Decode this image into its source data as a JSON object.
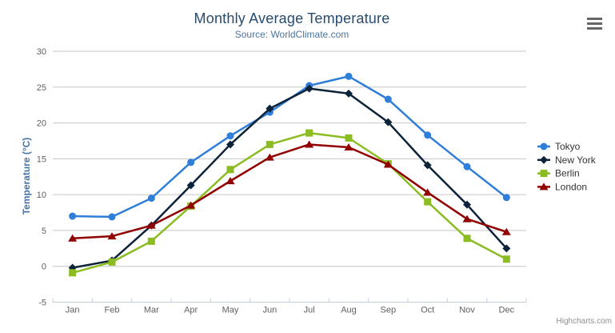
{
  "header": {
    "title": "Monthly Average Temperature",
    "subtitle": "Source: WorldClimate.com"
  },
  "y_axis_title": "Temperature (°C)",
  "credit_label": "Highcharts.com",
  "export_menu": {
    "icon": "hamburger-icon"
  },
  "colors": {
    "title_text": "#274b6d",
    "subtitle_text": "#4d759e",
    "axis_title_text": "#4572a7",
    "tick_label_text": "#606060",
    "legend_text": "#333333",
    "grid_line": "#c6c6c6",
    "x_axis_line": "#c0d0e0",
    "credit_text": "#909090"
  },
  "chart_data": {
    "type": "line",
    "title": "Monthly Average Temperature",
    "subtitle": "Source: WorldClimate.com",
    "xlabel": "",
    "ylabel": "Temperature (°C)",
    "ylim": [
      -5,
      30
    ],
    "ytick_step": 5,
    "grid": true,
    "legend_position": "right",
    "categories": [
      "Jan",
      "Feb",
      "Mar",
      "Apr",
      "May",
      "Jun",
      "Jul",
      "Aug",
      "Sep",
      "Oct",
      "Nov",
      "Dec"
    ],
    "series": [
      {
        "name": "Tokyo",
        "color": "#2f7ed8",
        "marker": "circle",
        "values": [
          7.0,
          6.9,
          9.5,
          14.5,
          18.2,
          21.5,
          25.2,
          26.5,
          23.3,
          18.3,
          13.9,
          9.6
        ]
      },
      {
        "name": "New York",
        "color": "#0d233a",
        "marker": "diamond",
        "values": [
          -0.2,
          0.8,
          5.7,
          11.3,
          17.0,
          22.0,
          24.8,
          24.1,
          20.1,
          14.1,
          8.6,
          2.5
        ]
      },
      {
        "name": "Berlin",
        "color": "#8bbc21",
        "marker": "square",
        "values": [
          -0.9,
          0.6,
          3.5,
          8.4,
          13.5,
          17.0,
          18.6,
          17.9,
          14.3,
          9.0,
          3.9,
          1.0
        ]
      },
      {
        "name": "London",
        "color": "#910000",
        "marker": "triangle",
        "values": [
          3.9,
          4.2,
          5.7,
          8.5,
          11.9,
          15.2,
          17.0,
          16.6,
          14.2,
          10.3,
          6.6,
          4.8
        ]
      }
    ]
  }
}
